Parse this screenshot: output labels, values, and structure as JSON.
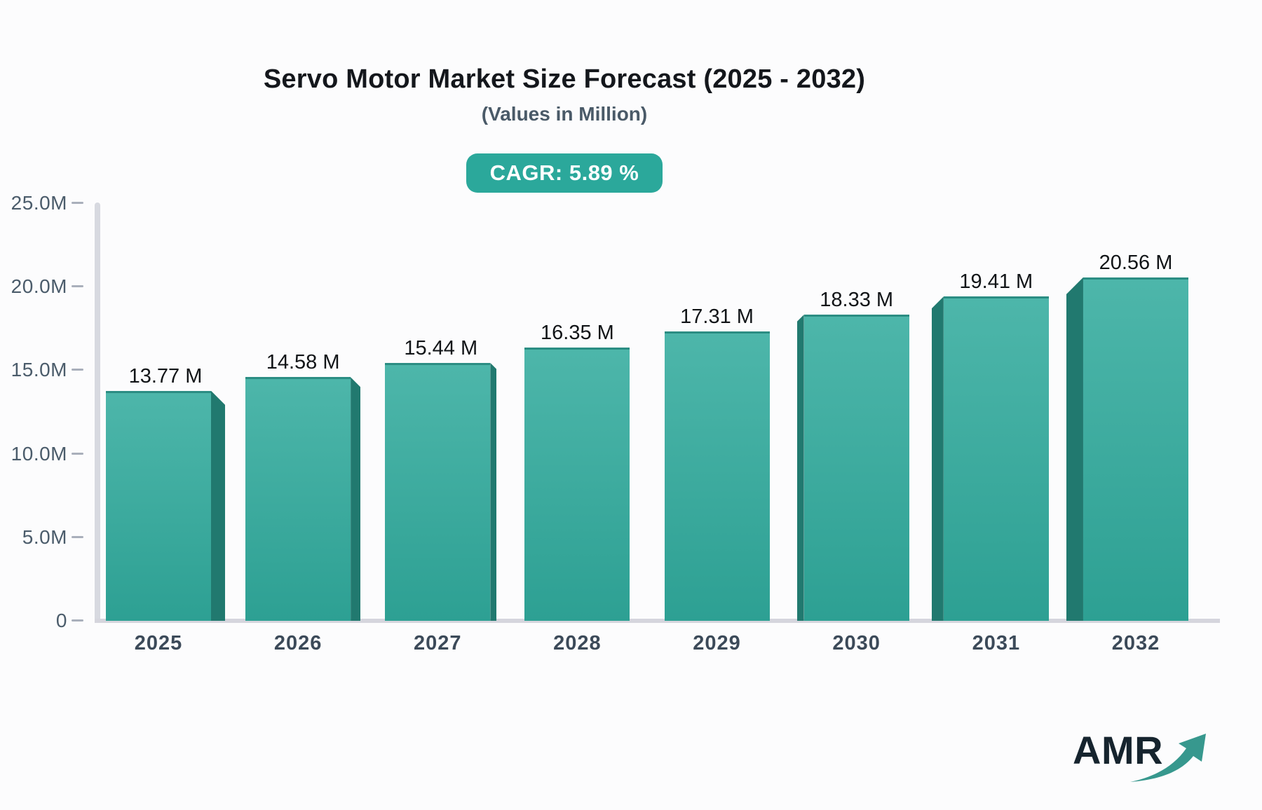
{
  "page": {
    "background": "#fcfcfd"
  },
  "header": {
    "title": "Servo Motor Market Size Forecast (2025 - 2032)",
    "subtitle": "(Values in Million)",
    "cagr_badge": "CAGR: 5.89 %"
  },
  "chart_data": {
    "type": "bar",
    "title": "Servo Motor Market Size Forecast (2025 - 2032)",
    "subtitle": "(Values in Million)",
    "unit": "Million",
    "cagr_percent": 5.89,
    "categories": [
      "2025",
      "2026",
      "2027",
      "2028",
      "2029",
      "2030",
      "2031",
      "2032"
    ],
    "values": [
      13.77,
      14.58,
      15.44,
      16.35,
      17.31,
      18.33,
      19.41,
      20.56
    ],
    "value_labels": [
      "13.77 M",
      "14.58 M",
      "15.44 M",
      "16.35 M",
      "17.31 M",
      "18.33 M",
      "19.41 M",
      "20.56 M"
    ],
    "xlabel": "",
    "ylabel": "",
    "ylim": [
      0,
      25
    ],
    "y_ticks": [
      {
        "label": "25.0M",
        "value": 25
      },
      {
        "label": "20.0M",
        "value": 20
      },
      {
        "label": "15.0M",
        "value": 15
      },
      {
        "label": "10.0M",
        "value": 10
      },
      {
        "label": "5.0M",
        "value": 5
      },
      {
        "label": "0",
        "value": 0
      }
    ],
    "grid": false,
    "legend": "none",
    "style": "3d-perspective-bars",
    "colors": {
      "bar_face_top": "#4DB6AA",
      "bar_face_bottom": "#2DA093",
      "bar_top_edge": "#2B8D83",
      "bar_side_face": "#21796F",
      "badge_background": "#2BA89B",
      "axis_line": "#D5D5DD",
      "tick_text": "#4B5C6B",
      "title_text": "#14171C"
    }
  },
  "logo": {
    "text": "AMR",
    "arrow_icon": "trend-up-arrow",
    "arrow_color": "#37988E",
    "text_color": "#16242E"
  }
}
